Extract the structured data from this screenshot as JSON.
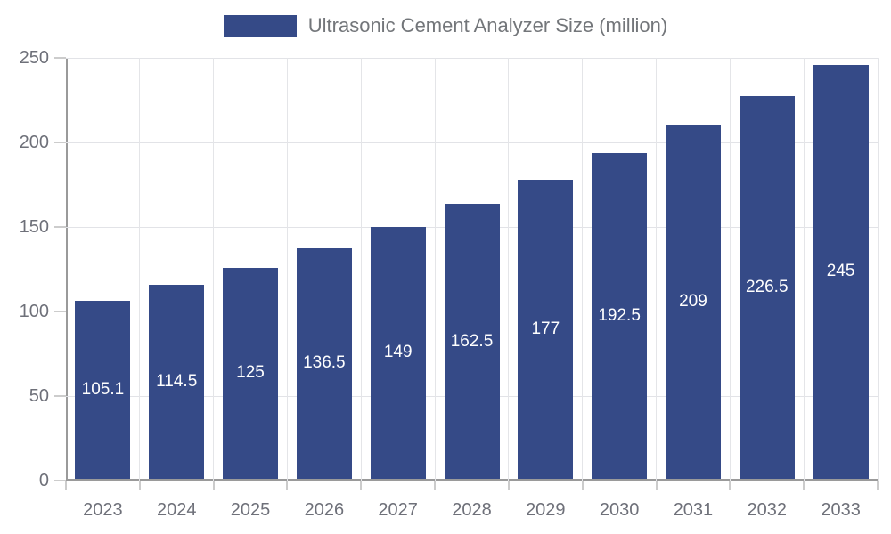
{
  "legend": {
    "label": "Ultrasonic Cement Analyzer Size (million)"
  },
  "chart_data": {
    "type": "bar",
    "title": "",
    "xlabel": "",
    "ylabel": "",
    "categories": [
      "2023",
      "2024",
      "2025",
      "2026",
      "2027",
      "2028",
      "2029",
      "2030",
      "2031",
      "2032",
      "2033"
    ],
    "values": [
      105.1,
      114.5,
      125,
      136.5,
      149,
      162.5,
      177,
      192.5,
      209,
      226.5,
      245
    ],
    "series_name": "Ultrasonic Cement Analyzer Size (million)",
    "ylim": [
      0,
      250
    ],
    "yticks": [
      0,
      50,
      100,
      150,
      200,
      250
    ],
    "grid": true,
    "legend_position": "top-center",
    "value_labels": "inside-center",
    "colors": {
      "bar": "#354a87",
      "bar_value_label": "#ffffff",
      "axis_line": "#9a9a9a",
      "tick": "#cccccc",
      "gridline": "#e2e3e7",
      "axis_text": "#6e7079",
      "legend_text": "#73767a"
    }
  }
}
